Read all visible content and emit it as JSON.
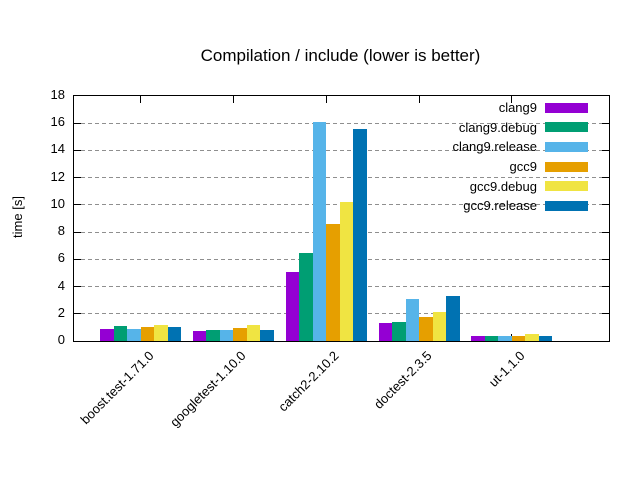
{
  "chart_data": {
    "type": "bar",
    "title": "Compilation / include (lower is better)",
    "ylabel": "time [s]",
    "ylim": [
      0,
      18
    ],
    "yticks": [
      0,
      2,
      4,
      6,
      8,
      10,
      12,
      14,
      16,
      18
    ],
    "grid": "horizontal dashed gray lines every 2 units",
    "legend_position": "top-right inside plot",
    "categories": [
      "boost.test-1.71.0",
      "googletest-1.10.0",
      "catch2-2.10.2",
      "doctest-2.3.5",
      "ut-1.1.0"
    ],
    "series": [
      {
        "name": "clang9",
        "color": "#9400d3",
        "values": [
          0.9,
          0.75,
          5.1,
          1.3,
          0.35
        ]
      },
      {
        "name": "clang9.debug",
        "color": "#009e73",
        "values": [
          1.1,
          0.8,
          6.5,
          1.4,
          0.4
        ]
      },
      {
        "name": "clang9.release",
        "color": "#56b4e9",
        "values": [
          0.9,
          0.8,
          16.1,
          3.1,
          0.4
        ]
      },
      {
        "name": "gcc9",
        "color": "#e69f00",
        "values": [
          1.0,
          0.95,
          8.6,
          1.8,
          0.4
        ]
      },
      {
        "name": "gcc9.debug",
        "color": "#f0e442",
        "values": [
          1.2,
          1.15,
          10.2,
          2.1,
          0.5
        ]
      },
      {
        "name": "gcc9.release",
        "color": "#0072b2",
        "values": [
          1.0,
          0.8,
          15.6,
          3.3,
          0.4
        ]
      }
    ]
  }
}
